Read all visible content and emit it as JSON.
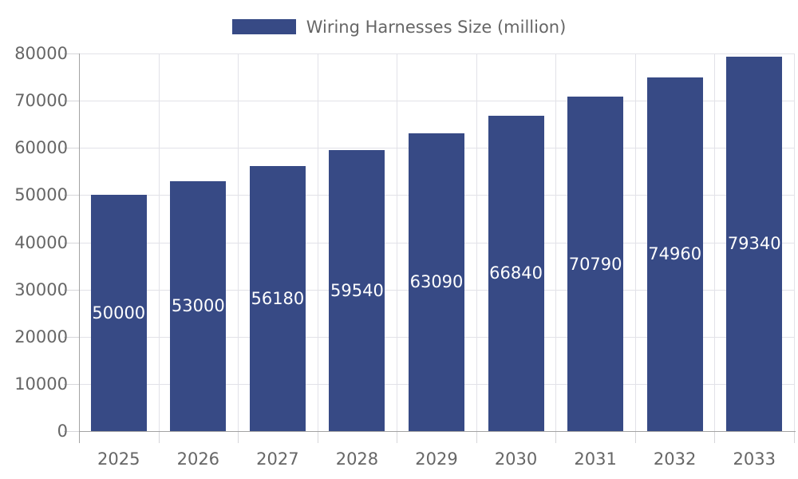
{
  "chart_data": {
    "type": "bar",
    "title": "Wiring Harnesses Size (million)",
    "legend_entries": [
      "Wiring Harnesses Size (million)"
    ],
    "legend_position": "top-center",
    "xlabel": "",
    "ylabel": "",
    "categories": [
      "2025",
      "2026",
      "2027",
      "2028",
      "2029",
      "2030",
      "2031",
      "2032",
      "2033"
    ],
    "values": [
      50000,
      53000,
      56180,
      59540,
      63090,
      66840,
      70790,
      74960,
      79340
    ],
    "ylim": [
      0,
      80000
    ],
    "yticks": [
      0,
      10000,
      20000,
      30000,
      40000,
      50000,
      60000,
      70000,
      80000
    ],
    "grid": true,
    "value_labels_shown": true,
    "colors": {
      "bar": "#374a85",
      "bar_value_label": "#ffffff",
      "legend_text": "#666666",
      "axis_text": "#666666",
      "grid_line": "#e2e2e8",
      "tick_line": "#d6d6da",
      "axis_line": "#a3a3a3",
      "background": "#ffffff"
    }
  }
}
